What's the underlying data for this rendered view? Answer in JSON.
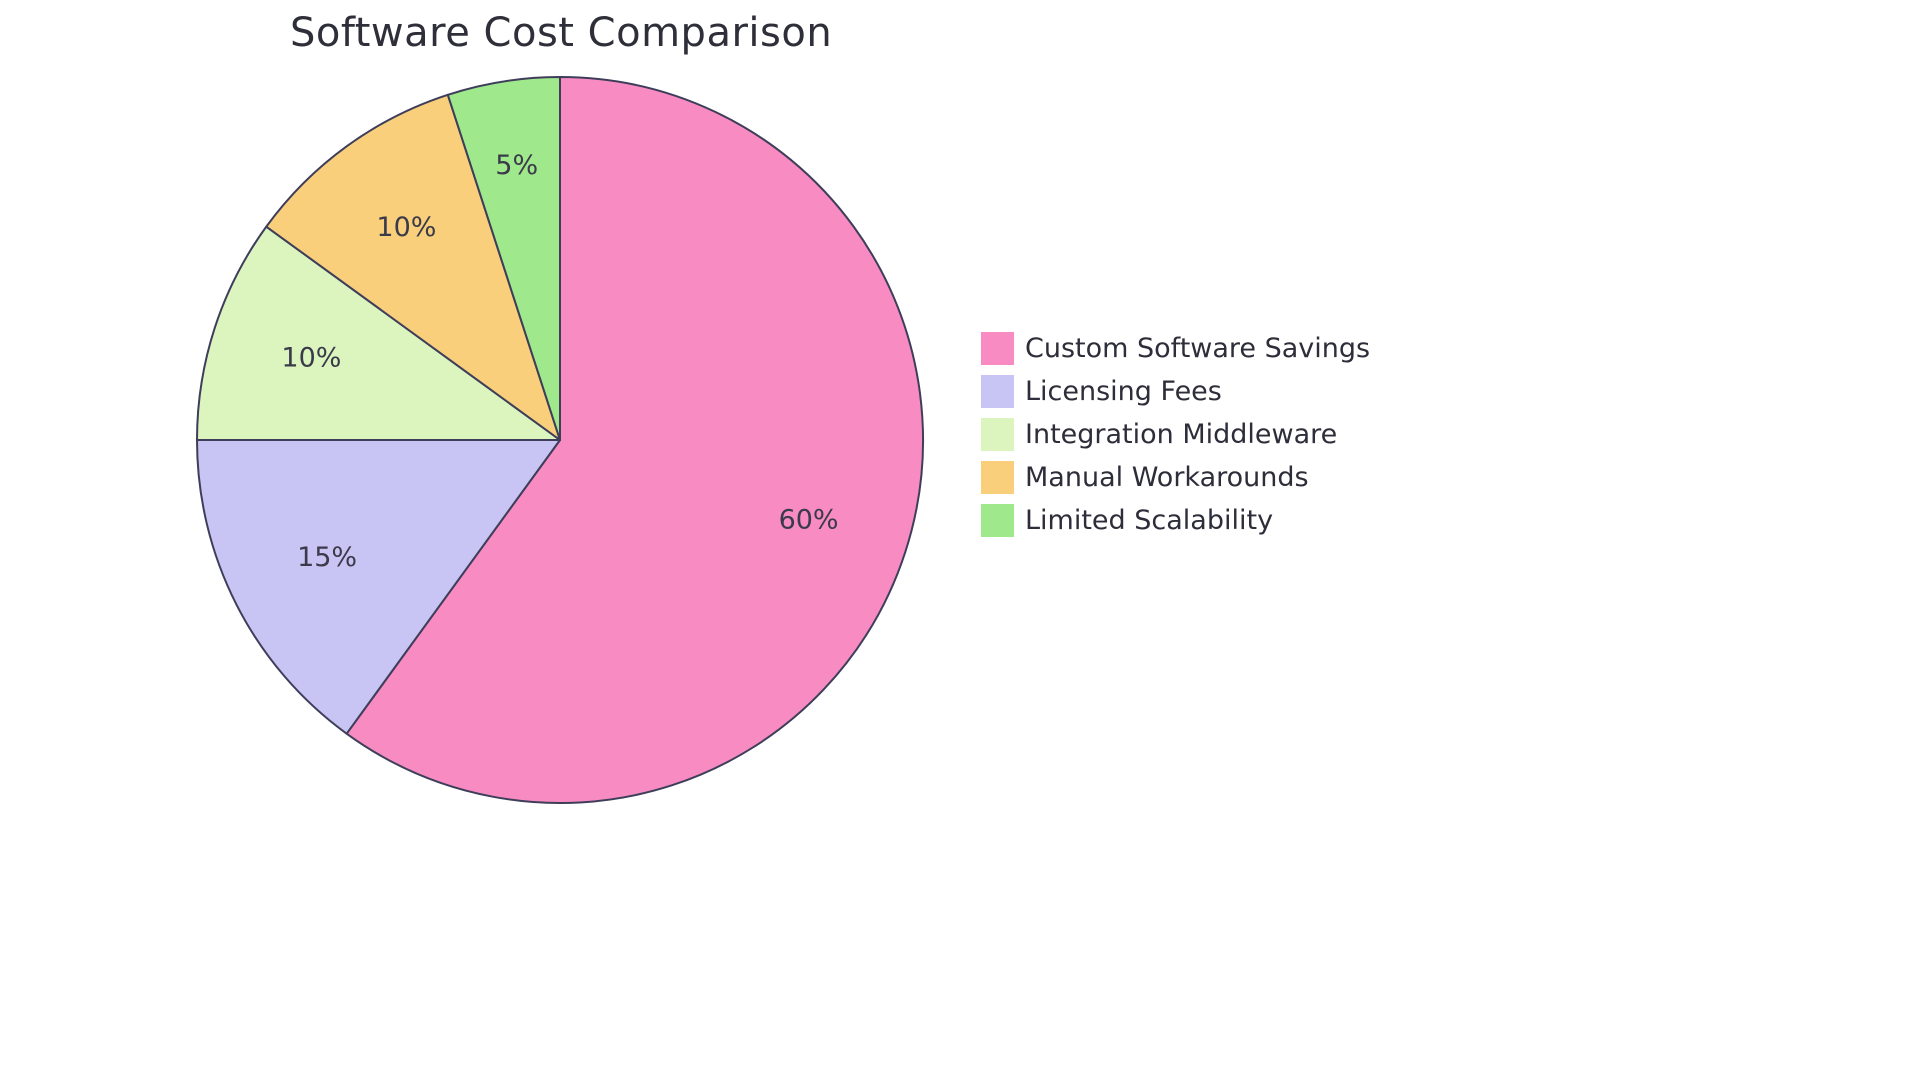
{
  "page": {
    "background_color": "#ffffff"
  },
  "chart_data": {
    "type": "pie",
    "title": "Software Cost Comparison",
    "categories": [
      "Custom Software Savings",
      "Licensing Fees",
      "Integration Middleware",
      "Manual Workarounds",
      "Limited Scalability"
    ],
    "values": [
      60,
      15,
      10,
      10,
      5
    ],
    "slice_labels": [
      "60%",
      "15%",
      "10%",
      "10%",
      "5%"
    ],
    "colors": [
      "#F88CC2",
      "#C8C4F4",
      "#DCF5BE",
      "#F9CF7B",
      "#9FE98C"
    ],
    "stroke_color": "#3E3E5B",
    "stroke_width": 2,
    "label_color": "#3A3A4A",
    "start_angle_deg": 0,
    "direction": "clockwise",
    "legend_position": "right",
    "grid": false
  }
}
